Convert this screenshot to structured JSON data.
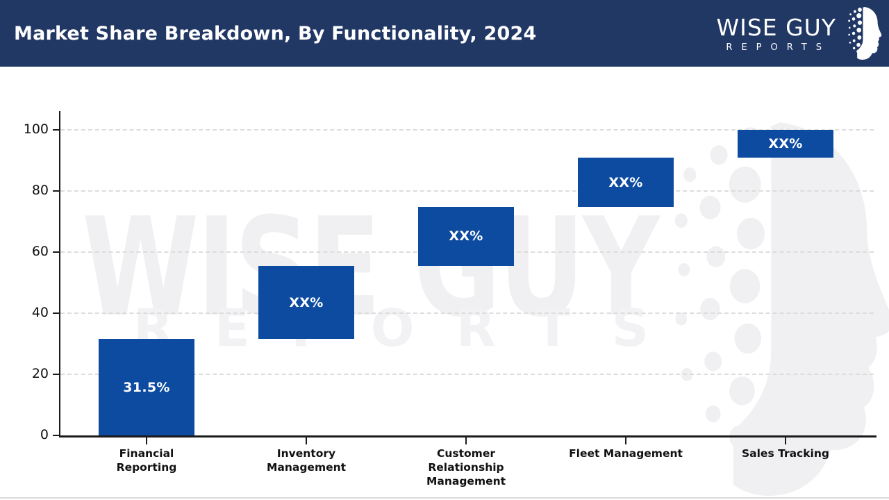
{
  "header": {
    "title": "Market Share Breakdown, By Functionality, 2024",
    "logo_line1": "WISE GUY",
    "logo_line2": "REPORTS"
  },
  "watermark": {
    "line1": "WISE GUY",
    "line2": "REPORTS"
  },
  "chart_data": {
    "type": "bar",
    "subtype": "waterfall",
    "title": "Market Share Breakdown, By Functionality, 2024",
    "ylim": [
      0,
      100
    ],
    "yticks": [
      0,
      20,
      40,
      60,
      80,
      100
    ],
    "grid": true,
    "legend": false,
    "categories": [
      "Financial Reporting",
      "Inventory Management",
      "Customer Relationship Management",
      "Fleet Management",
      "Sales Tracking"
    ],
    "series": [
      {
        "category": "Financial Reporting",
        "label_lines": [
          "Financial",
          "Reporting"
        ],
        "start": 0,
        "end": 31.5,
        "value_label": "31.5%"
      },
      {
        "category": "Inventory Management",
        "label_lines": [
          "Inventory",
          "Management"
        ],
        "start": 31.5,
        "end": 55.5,
        "value_label": "XX%"
      },
      {
        "category": "Customer Relationship Management",
        "label_lines": [
          "Customer",
          "Relationship",
          "Management"
        ],
        "start": 55.5,
        "end": 74.8,
        "value_label": "XX%"
      },
      {
        "category": "Fleet Management",
        "label_lines": [
          "Fleet Management"
        ],
        "start": 74.8,
        "end": 90.8,
        "value_label": "XX%"
      },
      {
        "category": "Sales Tracking",
        "label_lines": [
          "Sales Tracking"
        ],
        "start": 90.8,
        "end": 100,
        "value_label": "XX%"
      }
    ]
  },
  "colors": {
    "header_bg": "#213865",
    "bar": "#0d4ba1",
    "grid": "#dcdcdc",
    "axis": "#1a1a1a",
    "value_label": "#ffffff",
    "watermark": "#f0f0f2"
  }
}
